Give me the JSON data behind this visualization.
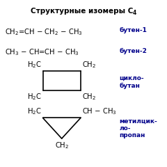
{
  "title": "Структурные изомеры C",
  "title_sub": "4",
  "bg": "#ffffff",
  "tc": "#000000",
  "lc": "#00008B",
  "row1_formula": "CH$_2$=CH − CH$_2$ − CH$_3$",
  "row1_label": "бутен-1",
  "row2_formula": "CH$_3$ − CH=CH − CH$_3$",
  "row2_label": "бутен-2",
  "cyclo_label": "цикло-\nбутан",
  "methyl_label": "метилцик-\nло-\nпропан",
  "fs_title": 7.5,
  "fs_main": 7.2,
  "fs_label": 6.5
}
